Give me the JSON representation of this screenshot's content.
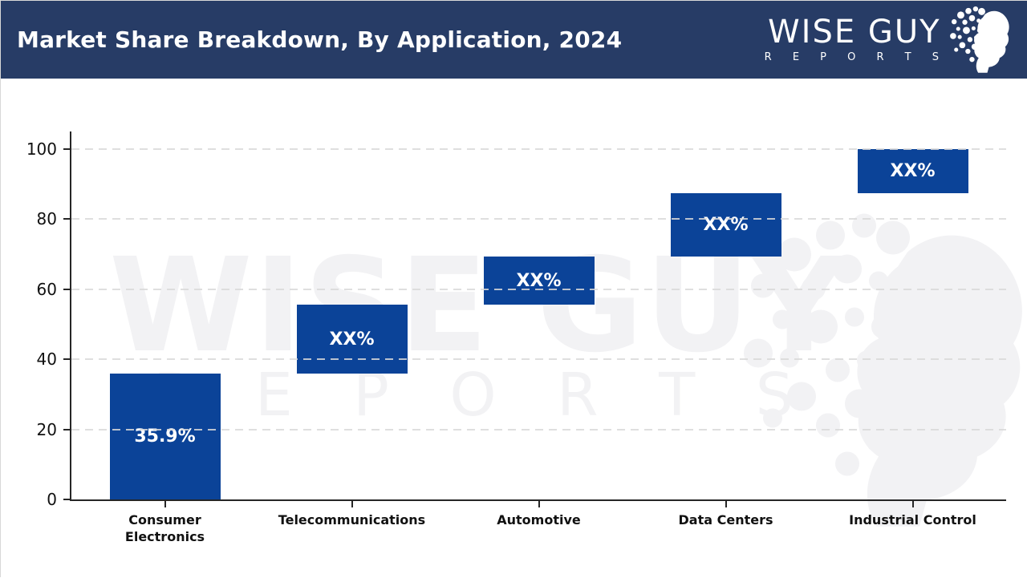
{
  "header": {
    "title": "Market Share Breakdown, By Application, 2024",
    "logo": {
      "wordmark": "WISE GUY",
      "tagline": "R E P O R T S",
      "face_icon": "dotted-face-profile-icon"
    }
  },
  "watermark": {
    "wordmark": "WISE GUY",
    "tagline": "R E P O R T S",
    "face_icon": "dotted-face-profile-icon"
  },
  "colors": {
    "header_bg": "#273c66",
    "header_text": "#ffffff",
    "bar_fill": "#0b4398",
    "bar_label": "#ffffff",
    "axis": "#262626",
    "tick_label": "#111111",
    "gridline": "#d9d9d9",
    "watermark": "#f2f2f4"
  },
  "chart_data": {
    "type": "bar",
    "subtype": "waterfall-floating-bars",
    "title": "Market Share Breakdown, By Application, 2024",
    "xlabel": "",
    "ylabel": "",
    "ylim": [
      0,
      100
    ],
    "yticks": [
      0,
      20,
      40,
      60,
      80,
      100
    ],
    "grid": "horizontal-dashed",
    "legend": "none",
    "categories": [
      "Consumer Electronics",
      "Telecommunications",
      "Automotive",
      "Data Centers",
      "Industrial Control"
    ],
    "category_lines": [
      [
        "Consumer",
        "Electronics"
      ],
      [
        "Telecommunications"
      ],
      [
        "Automotive"
      ],
      [
        "Data Centers"
      ],
      [
        "Industrial Control"
      ]
    ],
    "segments": [
      {
        "category": "Consumer Electronics",
        "start": 0,
        "end": 35.9,
        "label": "35.9%"
      },
      {
        "category": "Telecommunications",
        "start": 35.9,
        "end": 55.6,
        "label": "XX%"
      },
      {
        "category": "Automotive",
        "start": 55.6,
        "end": 69.3,
        "label": "XX%"
      },
      {
        "category": "Data Centers",
        "start": 69.3,
        "end": 87.4,
        "label": "XX%"
      },
      {
        "category": "Industrial Control",
        "start": 87.4,
        "end": 100,
        "label": "XX%"
      }
    ]
  }
}
